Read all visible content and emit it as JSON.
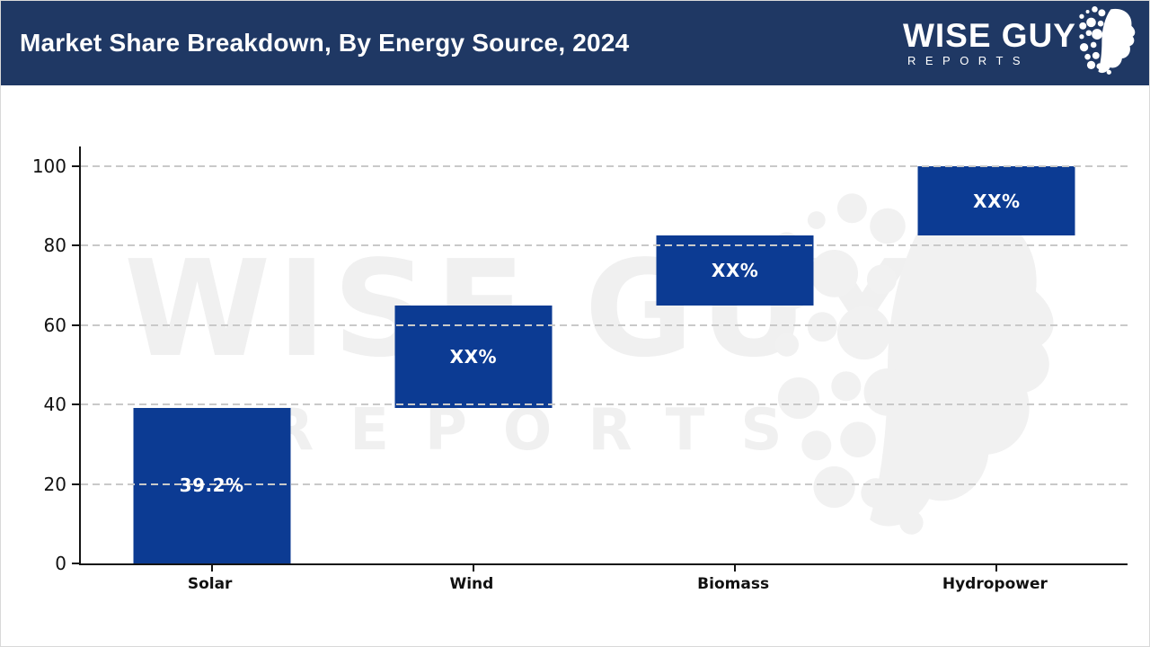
{
  "header": {
    "title": "Market Share Breakdown, By Energy Source, 2024",
    "logo": {
      "name": "WISE GUY",
      "tagline": "REPORTS"
    }
  },
  "watermark": {
    "line1": "WISE GUY",
    "line2": "REPORTS"
  },
  "colors": {
    "header_bg": "#1f3864",
    "bar": "#0c3b93",
    "grid": "#c9c9c9",
    "axis": "#141414",
    "bar_label": "#ffffff"
  },
  "chart_data": {
    "type": "bar",
    "subtype": "waterfall",
    "title": "Market Share Breakdown, By Energy Source, 2024",
    "categories": [
      "Solar",
      "Wind",
      "Biomass",
      "Hydropower"
    ],
    "series": [
      {
        "name": "Market share (%)",
        "segments": [
          {
            "category": "Solar",
            "start": 0,
            "end": 39.2,
            "label": "39.2%"
          },
          {
            "category": "Wind",
            "start": 39.2,
            "end": 65,
            "label": "XX%"
          },
          {
            "category": "Biomass",
            "start": 65,
            "end": 82.5,
            "label": "XX%"
          },
          {
            "category": "Hydropower",
            "start": 82.5,
            "end": 100,
            "label": "XX%"
          }
        ]
      }
    ],
    "xlabel": "",
    "ylabel": "",
    "ylim": [
      0,
      105
    ],
    "yticks": [
      0,
      20,
      40,
      60,
      80,
      100
    ],
    "grid": true,
    "grid_style": "dashed",
    "legend": null
  }
}
